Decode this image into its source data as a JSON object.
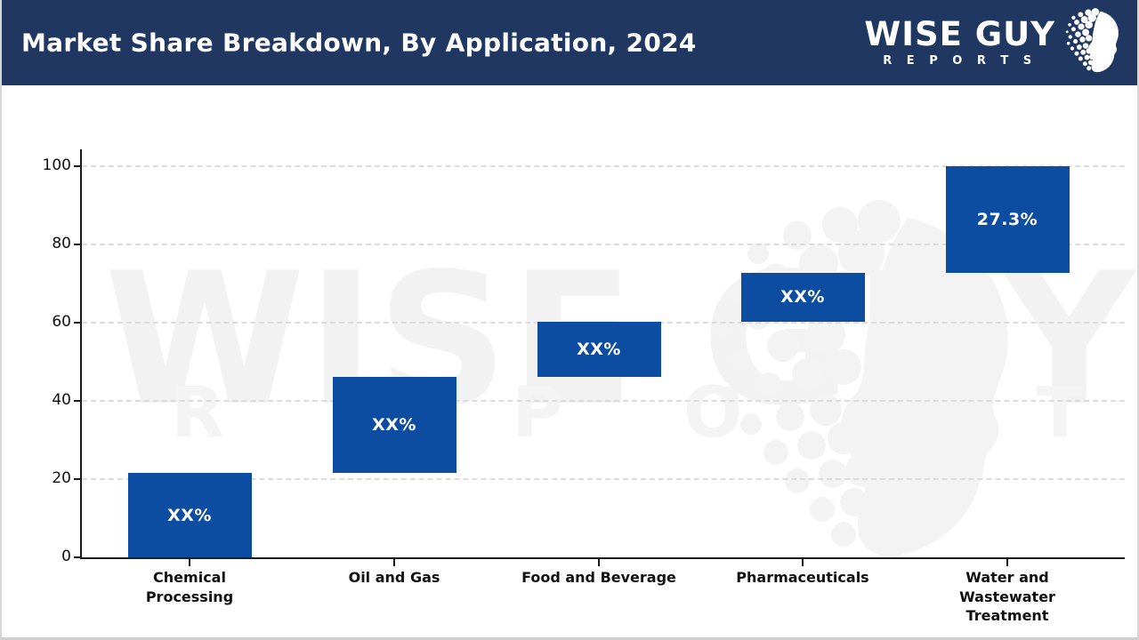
{
  "header": {
    "title": "Market Share Breakdown, By Application, 2024",
    "logo_line1": "WISE GUY",
    "logo_line2": "R E P O R T S"
  },
  "watermark": {
    "line1": "WISE GUY",
    "line2": "R E P O R T S"
  },
  "chart_data": {
    "type": "bar",
    "variant": "waterfall",
    "title": "Market Share Breakdown, By Application, 2024",
    "xlabel": "",
    "ylabel": "",
    "ylim": [
      0,
      100
    ],
    "yticks": [
      0,
      20,
      40,
      60,
      80,
      100
    ],
    "grid": "horizontal-dashed",
    "legend": "none",
    "bar_color": "#0c4da2",
    "bar_label_color": "#ffffff",
    "categories": [
      "Chemical\nProcessing",
      "Oil and Gas",
      "Food and Beverage",
      "Pharmaceuticals",
      "Water and\nWastewater\nTreatment"
    ],
    "bars": [
      {
        "category": "Chemical Processing",
        "start": 0,
        "end": 21.5,
        "value": 21.5,
        "label": "XX%"
      },
      {
        "category": "Oil and Gas",
        "start": 21.5,
        "end": 46.1,
        "value": 24.6,
        "label": "XX%"
      },
      {
        "category": "Food and Beverage",
        "start": 46.1,
        "end": 60.3,
        "value": 14.2,
        "label": "XX%"
      },
      {
        "category": "Pharmaceuticals",
        "start": 60.3,
        "end": 72.7,
        "value": 12.4,
        "label": "XX%"
      },
      {
        "category": "Water and Wastewater Treatment",
        "start": 72.7,
        "end": 100,
        "value": 27.3,
        "label": "27.3%"
      }
    ]
  }
}
